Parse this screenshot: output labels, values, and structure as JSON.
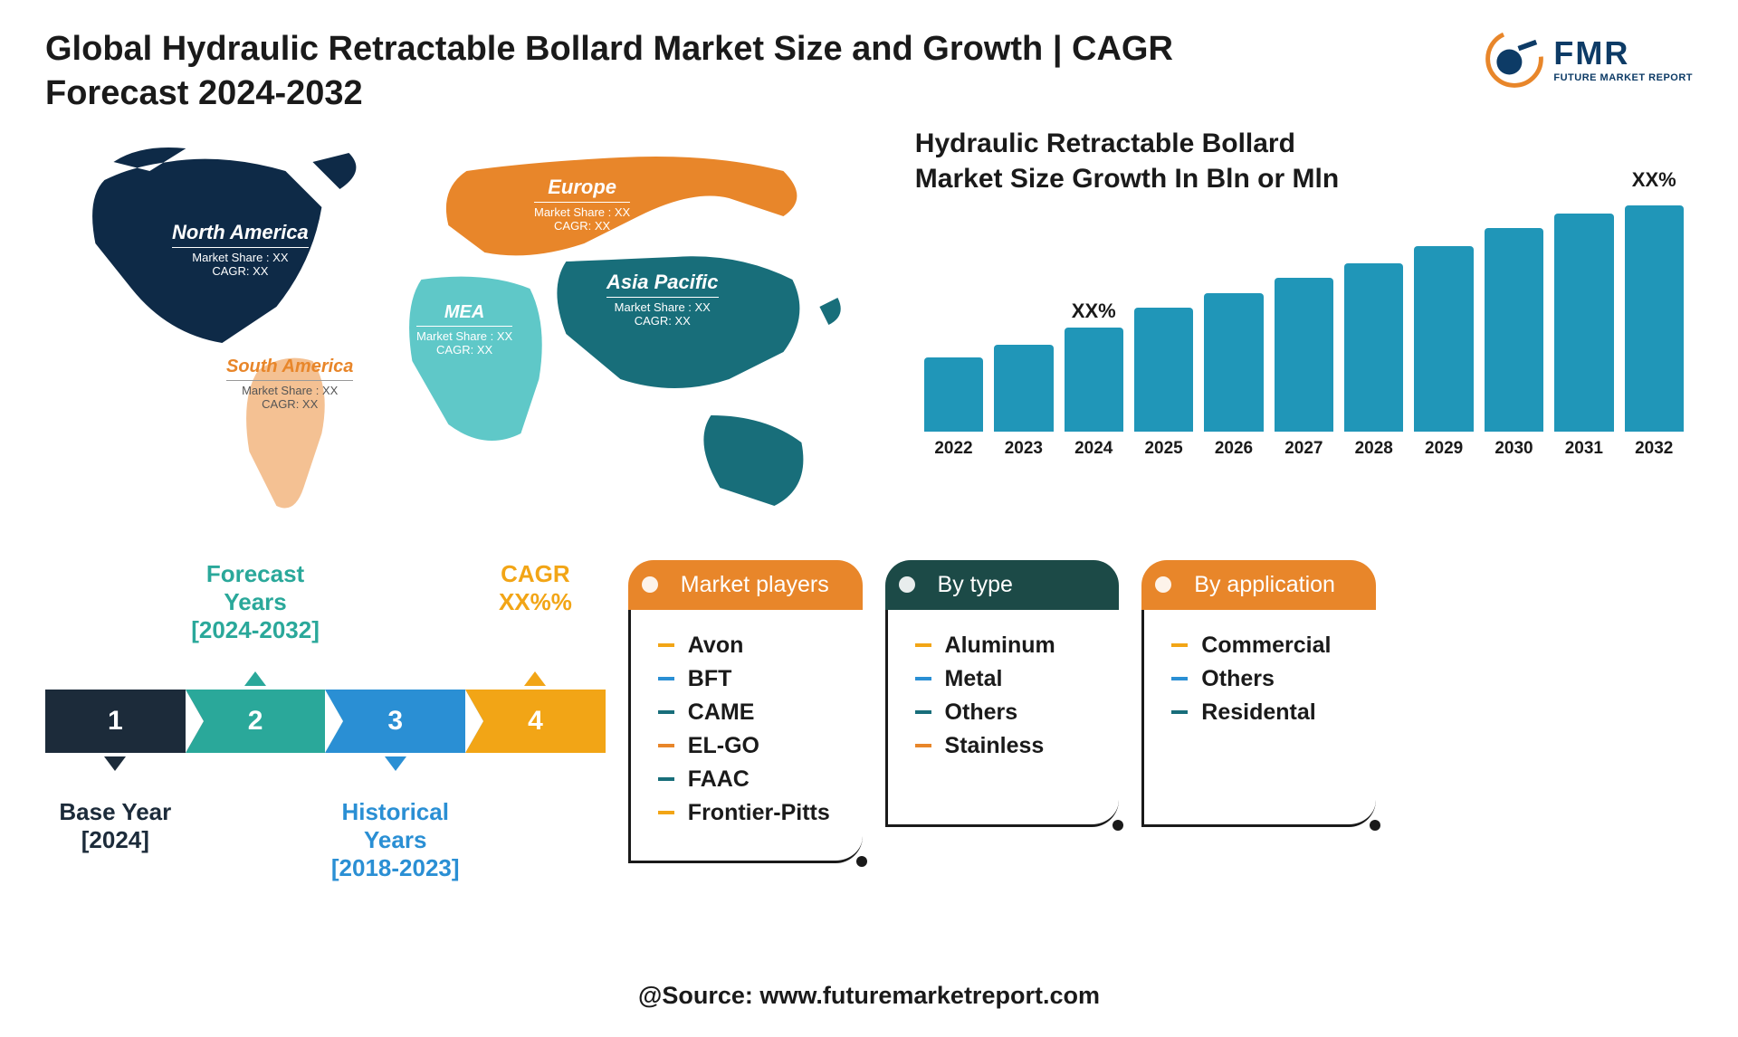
{
  "title": "Global Hydraulic Retractable Bollard Market Size and Growth | CAGR Forecast 2024-2032",
  "logo": {
    "main": "FMR",
    "sub": "FUTURE MARKET REPORT"
  },
  "map": {
    "regions": [
      {
        "name": "North America",
        "share": "Market Share : XX",
        "cagr": "CAGR: XX",
        "color": "#0e2a47"
      },
      {
        "name": "South America",
        "share": "Market Share : XX",
        "cagr": "CAGR: XX",
        "label_color": "#e8862a"
      },
      {
        "name": "Europe",
        "share": "Market Share : XX",
        "cagr": "CAGR: XX",
        "color": "#e8862a"
      },
      {
        "name": "MEA",
        "share": "Market Share : XX",
        "cagr": "CAGR: XX",
        "color": "#5fc8c8"
      },
      {
        "name": "Asia Pacific",
        "share": "Market Share : XX",
        "cagr": "CAGR: XX",
        "color": "#186e7a"
      }
    ]
  },
  "chart": {
    "title": "Hydraulic Retractable Bollard Market Size Growth In Bln or Mln",
    "type": "bar",
    "categories": [
      "2022",
      "2023",
      "2024",
      "2025",
      "2026",
      "2027",
      "2028",
      "2029",
      "2030",
      "2031",
      "2032"
    ],
    "values": [
      30,
      35,
      42,
      50,
      56,
      62,
      68,
      75,
      82,
      88,
      95
    ],
    "bar_color": "#2096b8",
    "annotations": [
      {
        "index": 2,
        "text": "XX%"
      },
      {
        "index": 10,
        "text": "XX%"
      }
    ],
    "label_fontsize": 19,
    "title_fontsize": 30,
    "background_color": "#ffffff"
  },
  "timeline": {
    "segments": [
      {
        "num": "1",
        "color": "#1c2b3a",
        "label": "Base Year [2024]",
        "label_color": "#1c2b3a",
        "pos": "bottom"
      },
      {
        "num": "2",
        "color": "#2aa89a",
        "label": "Forecast Years [2024-2032]",
        "label_color": "#2aa89a",
        "pos": "top"
      },
      {
        "num": "3",
        "color": "#2a8fd4",
        "label": "Historical Years [2018-2023]",
        "label_color": "#2a8fd4",
        "pos": "bottom"
      },
      {
        "num": "4",
        "color": "#f2a516",
        "label": "CAGR XX%%",
        "label_color": "#f2a516",
        "pos": "top"
      }
    ]
  },
  "categories": [
    {
      "title": "Market players",
      "header_color": "#e8862a",
      "items": [
        {
          "name": "Avon",
          "tick": "#f2a516"
        },
        {
          "name": "BFT",
          "tick": "#2a8fd4"
        },
        {
          "name": "CAME",
          "tick": "#186e7a"
        },
        {
          "name": "EL-GO",
          "tick": "#e8862a"
        },
        {
          "name": "FAAC",
          "tick": "#186e7a"
        },
        {
          "name": "Frontier-Pitts",
          "tick": "#f2a516"
        }
      ]
    },
    {
      "title": "By type",
      "header_color": "#1c4a47",
      "items": [
        {
          "name": "Aluminum",
          "tick": "#f2a516"
        },
        {
          "name": "Metal",
          "tick": "#2a8fd4"
        },
        {
          "name": "Others",
          "tick": "#186e7a"
        },
        {
          "name": "Stainless",
          "tick": "#e8862a"
        }
      ]
    },
    {
      "title": "By application",
      "header_color": "#e8862a",
      "items": [
        {
          "name": "Commercial",
          "tick": "#f2a516"
        },
        {
          "name": "Others",
          "tick": "#2a8fd4"
        },
        {
          "name": "Residental",
          "tick": "#186e7a"
        }
      ]
    }
  ],
  "source": "@Source: www.futuremarketreport.com"
}
